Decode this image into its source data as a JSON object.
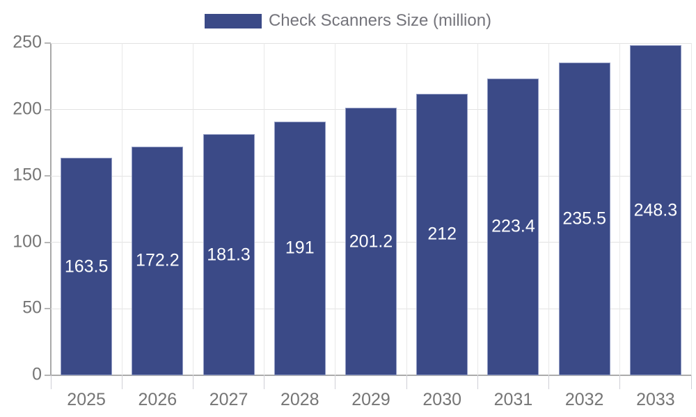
{
  "chart_data": {
    "type": "bar",
    "title": "",
    "legend": "Check Scanners Size (million)",
    "legend_position": "top",
    "categories": [
      "2025",
      "2026",
      "2027",
      "2028",
      "2029",
      "2030",
      "2031",
      "2032",
      "2033"
    ],
    "series": [
      {
        "name": "Check Scanners Size (million)",
        "values": [
          163.5,
          172.2,
          181.3,
          191,
          201.2,
          212,
          223.4,
          235.5,
          248.3
        ]
      }
    ],
    "value_labels": [
      "163.5",
      "172.2",
      "181.3",
      "191",
      "201.2",
      "212",
      "223.4",
      "235.5",
      "248.3"
    ],
    "xlabel": "",
    "ylabel": "",
    "ylim": [
      0,
      250
    ],
    "yticks": [
      0,
      50,
      100,
      150,
      200,
      250
    ],
    "grid": true,
    "colors": {
      "bar": "#3B4A87",
      "value_label": "#ffffff",
      "axis_text": "#757575",
      "legend_text": "#74747b",
      "gridline": "#e2e2e2"
    }
  }
}
